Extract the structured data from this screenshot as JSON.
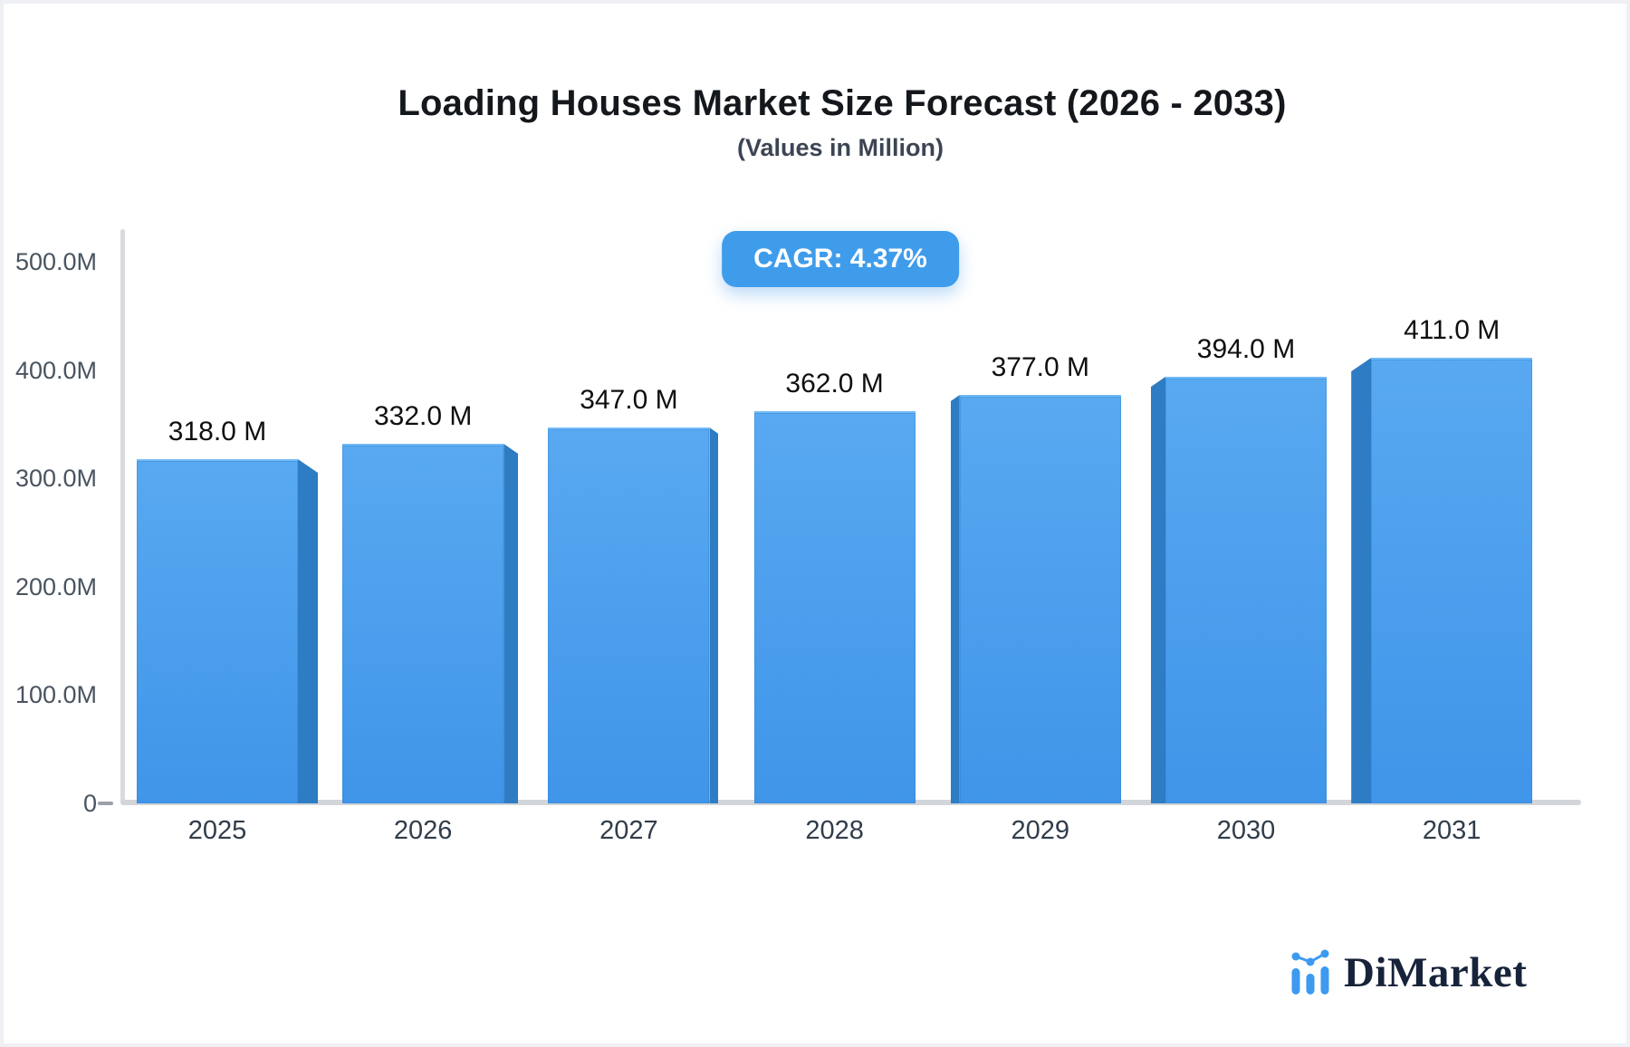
{
  "header": {
    "title": "Loading Houses Market Size Forecast (2026 - 2033)",
    "subtitle": "(Values in Million)"
  },
  "badge": {
    "label": "CAGR: 4.37%"
  },
  "chart_data": {
    "type": "bar",
    "title": "Loading Houses Market Size Forecast (2026 - 2033)",
    "subtitle": "(Values in Million)",
    "unit": "Million",
    "categories": [
      "2025",
      "2026",
      "2027",
      "2028",
      "2029",
      "2030",
      "2031"
    ],
    "values": [
      318,
      332,
      347,
      362,
      377,
      394,
      411
    ],
    "value_labels": [
      "318.0 M",
      "332.0 M",
      "347.0 M",
      "362.0 M",
      "377.0 M",
      "394.0 M",
      "411.0 M"
    ],
    "y_ticks": [
      {
        "label": "500.0M",
        "value": 500
      },
      {
        "label": "400.0M",
        "value": 400
      },
      {
        "label": "300.0M",
        "value": 300
      },
      {
        "label": "200.0M",
        "value": 200
      },
      {
        "label": "100.0M",
        "value": 100
      },
      {
        "label": "0",
        "value": 0
      }
    ],
    "ylim": [
      0,
      500
    ],
    "grid": false,
    "legend": false,
    "style": "3d-perspective-bars"
  },
  "colors": {
    "accent": "#3f9ceb",
    "bar_top": "#58a9f1",
    "bar_bottom": "#4095e9",
    "bar_side": "#2d7cc4",
    "axis_line": "#d8dade",
    "baseline": "#d2d5d9"
  },
  "footer": {
    "brand": "DiMarket"
  }
}
